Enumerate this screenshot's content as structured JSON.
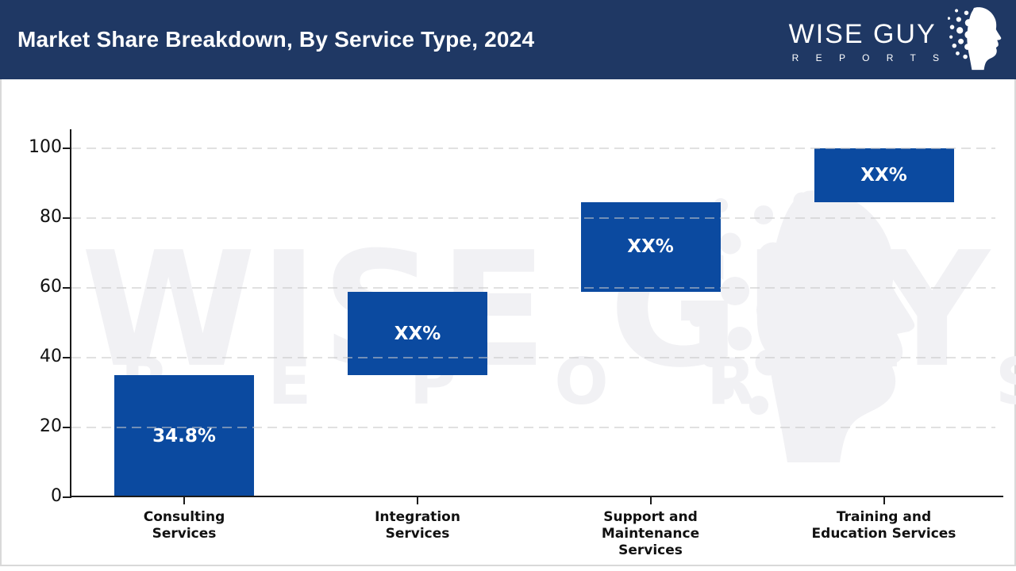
{
  "header": {
    "title": "Market Share Breakdown, By Service Type, 2024",
    "bg_color": "#1f3864",
    "logo": {
      "wordmark": "WISE GUY",
      "subtext": "R E P O R T S"
    }
  },
  "watermark": {
    "wordmark": "WISE GUY",
    "subtext": "R E P O R T S"
  },
  "chart_data": {
    "type": "bar",
    "subtype": "waterfall",
    "title": "Market Share Breakdown, By Service Type, 2024",
    "categories": [
      {
        "name": "Consulting Services",
        "lines": [
          "Consulting",
          "Services"
        ]
      },
      {
        "name": "Integration Services",
        "lines": [
          "Integration",
          "Services"
        ]
      },
      {
        "name": "Support and Maintenance Services",
        "lines": [
          "Support and",
          "Maintenance",
          "Services"
        ]
      },
      {
        "name": "Training and Education Services",
        "lines": [
          "Training and",
          "Education Services"
        ]
      }
    ],
    "segments": [
      {
        "category": "Consulting Services",
        "start": 0,
        "end": 34.8,
        "label": "34.8%"
      },
      {
        "category": "Integration Services",
        "start": 34.8,
        "end": 58.8,
        "label": "XX%"
      },
      {
        "category": "Support and Maintenance Services",
        "start": 58.8,
        "end": 84.5,
        "label": "XX%"
      },
      {
        "category": "Training and Education Services",
        "start": 84.5,
        "end": 100,
        "label": "XX%"
      }
    ],
    "yticks": [
      0,
      20,
      40,
      60,
      80,
      100
    ],
    "ylim": [
      0,
      105
    ],
    "xlabel": "",
    "ylabel": "",
    "grid": "horizontal-dashed",
    "legend": "none",
    "bar_color": "#0b4aa0",
    "bar_label_color": "#ffffff",
    "axis_color": "#1a1a1a",
    "grid_color": "#dcdcdc",
    "watermark_color": "#f1f1f4"
  }
}
